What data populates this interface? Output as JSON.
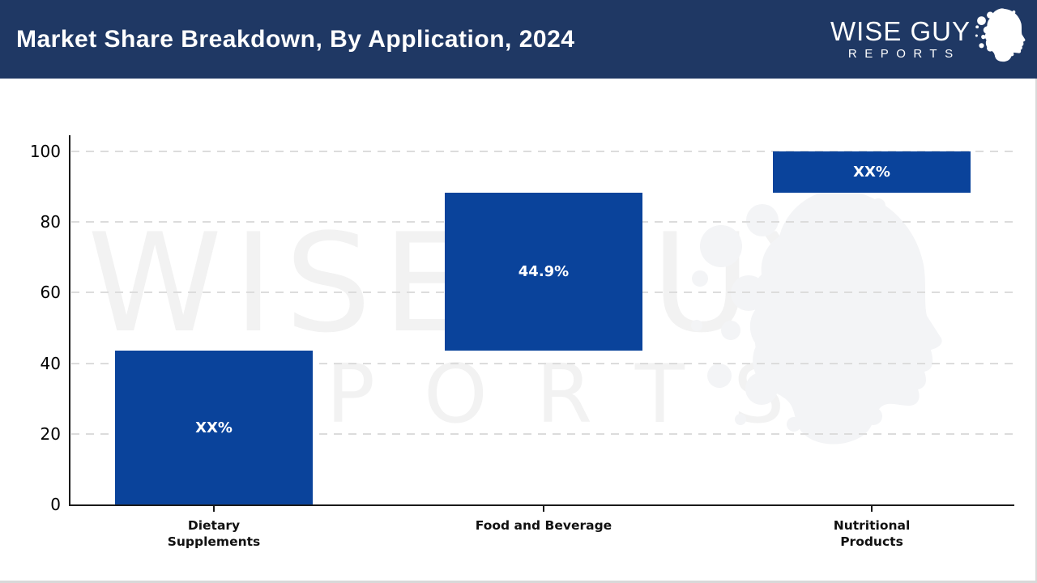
{
  "header": {
    "title": "Market Share Breakdown, By Application, 2024",
    "background_color": "#1f3864"
  },
  "logo": {
    "line1": "WISE GUY",
    "line2": "REPORTS",
    "icon": "dotted-head-profile-icon"
  },
  "watermark": {
    "line1": "WISE GUY",
    "line2": "REPORTS",
    "icon": "dotted-head-profile-watermark"
  },
  "chart_data": {
    "type": "bar",
    "subtype": "stacked-waterfall-percent",
    "title": "Market Share Breakdown, By Application, 2024",
    "categories": [
      "Dietary Supplements",
      "Food and Beverage",
      "Nutritional Products"
    ],
    "category_display": [
      "Dietary\nSupplements",
      "Food and Beverage",
      "Nutritional\nProducts"
    ],
    "segments": [
      {
        "category": "Dietary Supplements",
        "start": 0,
        "end": 43.5,
        "label": "XX%",
        "value_masked": true,
        "approx_value": 43.5
      },
      {
        "category": "Food and Beverage",
        "start": 43.5,
        "end": 88.4,
        "label": "44.9%",
        "value_masked": false,
        "approx_value": 44.9
      },
      {
        "category": "Nutritional Products",
        "start": 88.4,
        "end": 100,
        "label": "XX%",
        "value_masked": true,
        "approx_value": 11.6
      }
    ],
    "xlabel": "",
    "ylabel": "",
    "ylim": [
      0,
      100
    ],
    "yticks": [
      0,
      20,
      40,
      60,
      80,
      100
    ],
    "grid": "horizontal dashed",
    "gridline_color": "#dcdcdc",
    "bar_color": "#0a439b",
    "bar_label_color": "#ffffff",
    "axis_color": "#1a1a1a",
    "legend": "none"
  }
}
